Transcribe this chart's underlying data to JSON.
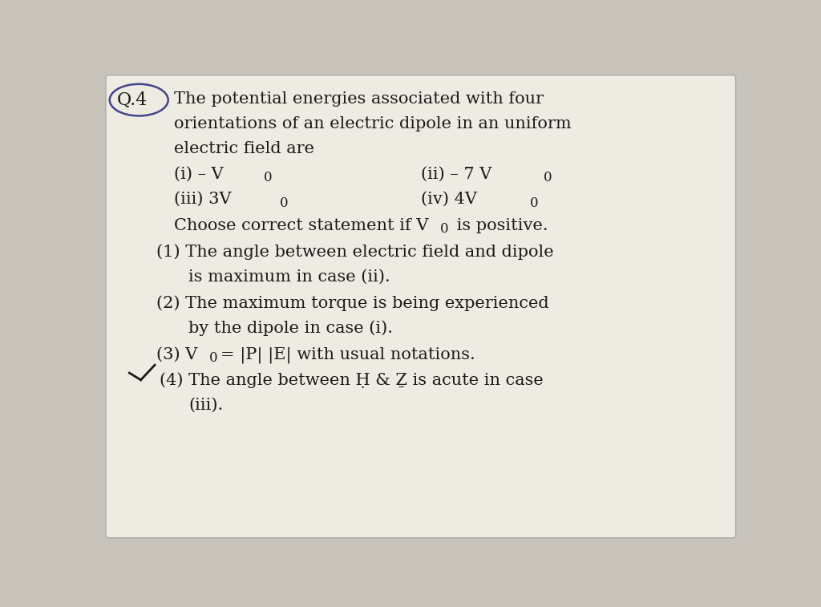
{
  "background_color": "#c8c4bc",
  "paper_color": "#eeebe3",
  "text_color": "#1a1a1a",
  "question_number": "Q.4",
  "title_line1": "The potential energies associated with four",
  "title_line2": "orientations of an electric dipole in an uniform",
  "title_line3": "electric field are",
  "font_size": 15
}
